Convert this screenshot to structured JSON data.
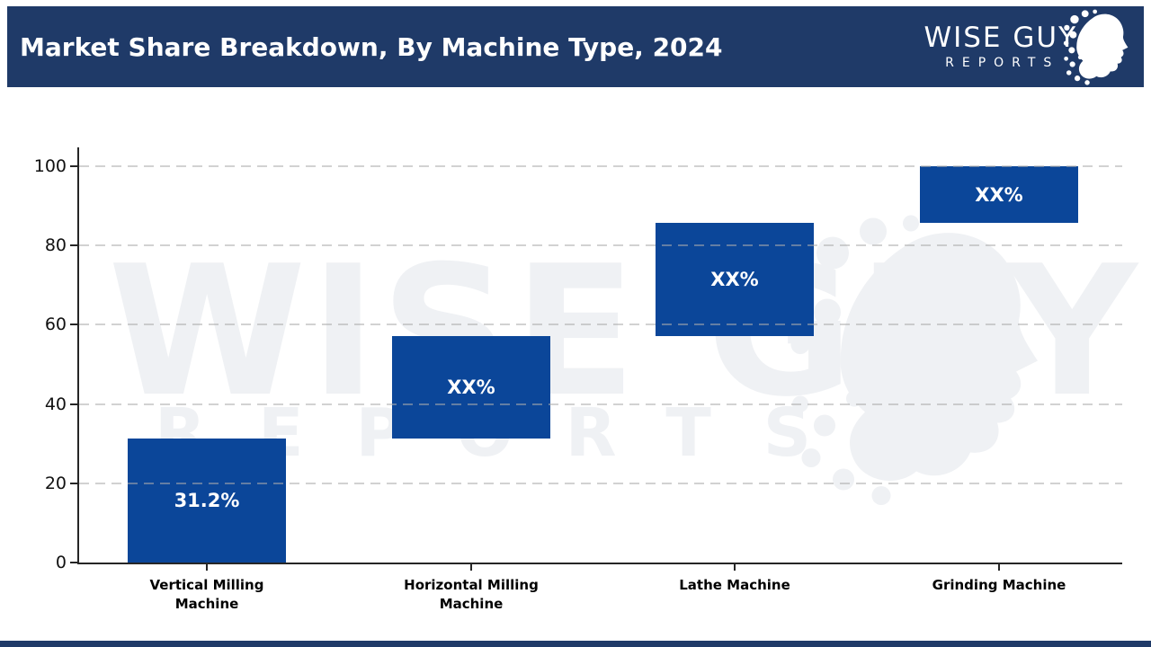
{
  "header": {
    "title": "Market Share Breakdown, By Machine Type, 2024",
    "logo": {
      "wordmark": "WISE GUY",
      "subtext": "REPORTS"
    }
  },
  "watermark": {
    "wordmark": "WISE GUY",
    "subtext": "REPORTS"
  },
  "chart_data": {
    "type": "bar",
    "subtype": "floating-waterfall",
    "title": "Market Share Breakdown, By Machine Type, 2024",
    "categories": [
      "Vertical Milling Machine",
      "Horizontal Milling Machine",
      "Lathe Machine",
      "Grinding Machine"
    ],
    "segments": [
      {
        "category": "Vertical Milling Machine",
        "start": 0,
        "end": 31.2,
        "label": "31.2%"
      },
      {
        "category": "Horizontal Milling Machine",
        "start": 31.2,
        "end": 57.2,
        "label": "XX%"
      },
      {
        "category": "Lathe Machine",
        "start": 57.2,
        "end": 85.7,
        "label": "XX%"
      },
      {
        "category": "Grinding Machine",
        "start": 85.7,
        "end": 100,
        "label": "XX%"
      }
    ],
    "ylim": [
      0,
      100
    ],
    "yticks": [
      0,
      20,
      40,
      60,
      80,
      100
    ],
    "xlabel": "",
    "ylabel": "",
    "legend": "none",
    "grid": {
      "axis": "y",
      "style": "dashed",
      "on": true
    },
    "bar_color": "#0b4699",
    "bar_label_color": "#ffffff",
    "axis_color": "#262626",
    "grid_color": "#d9d9d9"
  },
  "colors": {
    "header_bg": "#1f3a68",
    "footer_bg": "#1f3a68",
    "page_bg": "#ffffff",
    "watermark": "#eff1f4",
    "logo_text": "#ffffff",
    "title_text": "#ffffff"
  }
}
